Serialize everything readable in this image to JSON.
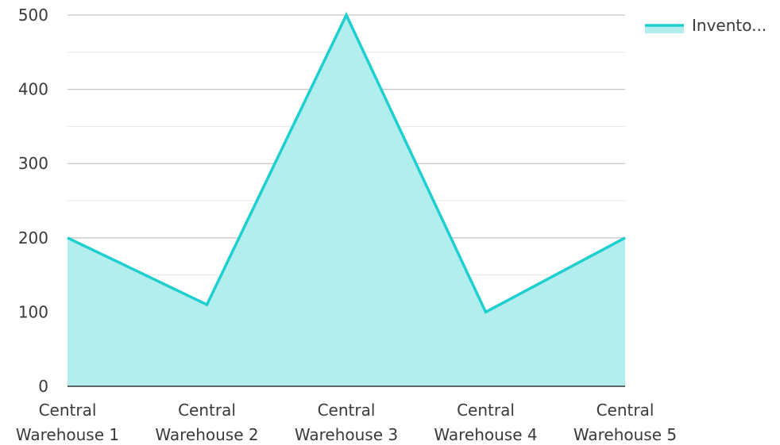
{
  "chart_data": {
    "type": "area",
    "title": "",
    "xlabel": "",
    "ylabel": "",
    "categories": [
      [
        "Central",
        "Warehouse 1"
      ],
      [
        "Central",
        "Warehouse 2"
      ],
      [
        "Central",
        "Warehouse 3"
      ],
      [
        "Central",
        "Warehouse 4"
      ],
      [
        "Central",
        "Warehouse 5"
      ]
    ],
    "series": [
      {
        "name": "Invento...",
        "values": [
          200,
          110,
          500,
          100,
          200
        ],
        "color": "#1ecfcf",
        "fill": "#b2eeed"
      }
    ],
    "ylim": [
      0,
      500
    ],
    "yticks": [
      0,
      100,
      200,
      300,
      400,
      500
    ],
    "grid": true,
    "legend_position": "top-right"
  }
}
